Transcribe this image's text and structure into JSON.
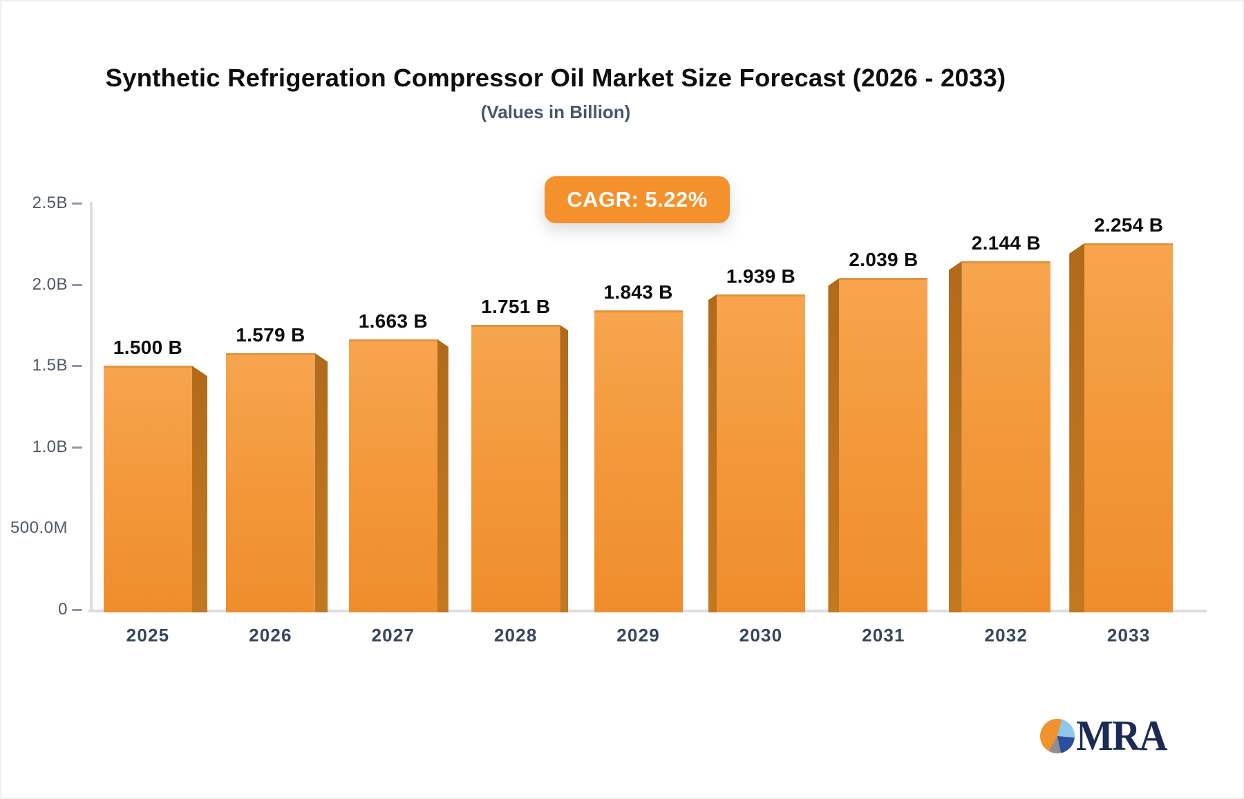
{
  "header": {
    "title": "Synthetic Refrigeration Compressor Oil Market Size Forecast (2026 - 2033)",
    "subtitle": "(Values in Billion)"
  },
  "badge": {
    "label": "CAGR: 5.22%",
    "background_color": "#F5912D",
    "text_color": "#FFFFFF"
  },
  "chart_data": {
    "type": "bar",
    "title": "Synthetic Refrigeration Compressor Oil Market Size Forecast (2026 - 2033)",
    "subtitle": "(Values in Billion)",
    "annotation": "CAGR: 5.22%",
    "categories": [
      "2025",
      "2026",
      "2027",
      "2028",
      "2029",
      "2030",
      "2031",
      "2032",
      "2033"
    ],
    "values": [
      1.5,
      1.579,
      1.663,
      1.751,
      1.843,
      1.939,
      2.039,
      2.144,
      2.254
    ],
    "value_labels": [
      "1.500 B",
      "1.579 B",
      "1.663 B",
      "1.751 B",
      "1.843 B",
      "1.939 B",
      "2.039 B",
      "2.144 B",
      "2.254 B"
    ],
    "unit": "Billion",
    "xlabel": "",
    "ylabel": "",
    "ylim": [
      0,
      2.5
    ],
    "grid": false,
    "legend": false,
    "y_ticks": [
      {
        "label": "2.5B",
        "value": 2.5,
        "dash": true
      },
      {
        "label": "2.0B",
        "value": 2.0,
        "dash": true
      },
      {
        "label": "1.5B",
        "value": 1.5,
        "dash": true
      },
      {
        "label": "1.0B",
        "value": 1.0,
        "dash": true
      },
      {
        "label": "500.0M",
        "value": 0.5,
        "dash": false
      },
      {
        "label": "0",
        "value": 0.0,
        "dash": true
      }
    ],
    "bar_front_color_top": "#F7A54E",
    "bar_front_color_bottom": "#EF8D2C",
    "bar_side_color": "#BD731E"
  },
  "logo": {
    "text": "MRA",
    "icon": "pie-chart-icon",
    "text_color": "#1B2B55",
    "pie_colors": {
      "orange": "#F0922D",
      "light_blue": "#8FC7EC",
      "dark_blue": "#2B4F9E",
      "gray": "#8C8F94"
    }
  }
}
